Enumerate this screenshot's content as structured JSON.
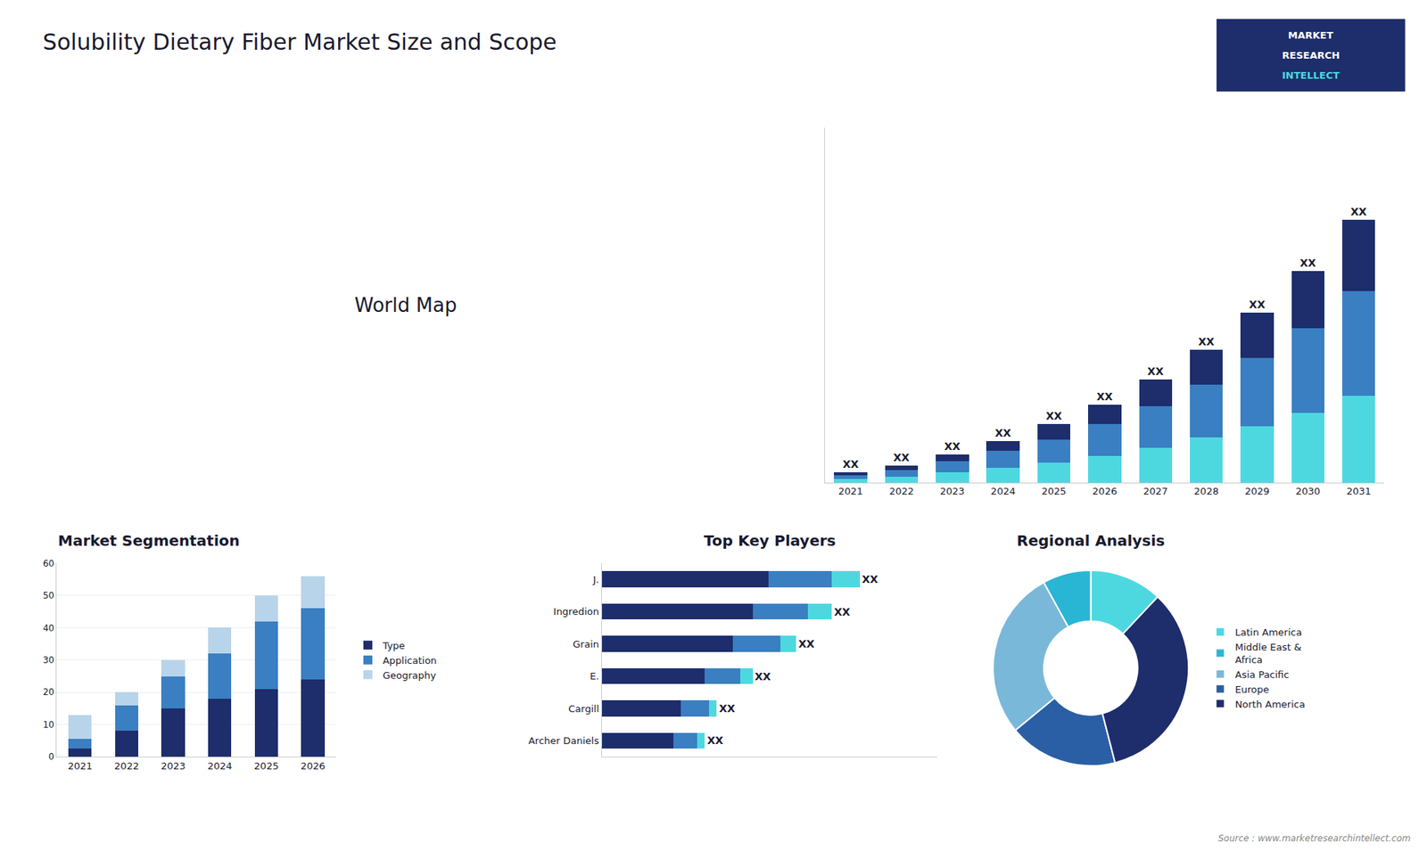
{
  "title": "Solubility Dietary Fiber Market Size and Scope",
  "annotations": [
    "World Map",
    "Source : www.marketresearchintellect.com",
    "MARKET",
    "RESEARCH",
    "INTELLECT"
  ],
  "chart_data": [
    {
      "type": "bar",
      "stacked": true,
      "categories": [
        "2021",
        "2022",
        "2023",
        "2024",
        "2025",
        "2026",
        "2027",
        "2028",
        "2029",
        "2030",
        "2031"
      ],
      "series": [
        {
          "color": "#4dd8e0",
          "values": [
            1.0,
            1.8,
            3.0,
            4.5,
            6.0,
            8.0,
            10.5,
            13.5,
            17.0,
            21.0,
            26.0
          ]
        },
        {
          "color": "#3a7fc1",
          "values": [
            1.2,
            2.0,
            3.5,
            5.0,
            7.0,
            9.5,
            12.5,
            16.0,
            20.5,
            25.5,
            31.5
          ]
        },
        {
          "color": "#1e2d6b",
          "values": [
            0.8,
            1.2,
            2.0,
            3.0,
            4.5,
            6.0,
            8.0,
            10.5,
            13.5,
            17.0,
            21.5
          ],
          "value_labels": [
            "XX",
            "XX",
            "XX",
            "XX",
            "XX",
            "XX",
            "XX",
            "XX",
            "XX",
            "XX",
            "XX"
          ]
        }
      ],
      "ylim": [
        0,
        106.65
      ],
      "tick_labels": "x",
      "grid": false
    },
    {
      "type": "bar",
      "title": "Market Segmentation",
      "stacked": true,
      "categories": [
        "2021",
        "2022",
        "2023",
        "2024",
        "2025",
        "2026"
      ],
      "series": [
        {
          "name": "Type",
          "color": "#1e2d6b",
          "values": [
            2.5,
            8.0,
            15.0,
            18.0,
            21.0,
            24.0
          ]
        },
        {
          "name": "Application",
          "color": "#3a7fc1",
          "values": [
            3.0,
            8.0,
            10.0,
            14.0,
            21.0,
            22.0
          ]
        },
        {
          "name": "Geography",
          "color": "#b8d4ea",
          "values": [
            7.5,
            4.0,
            5.0,
            8.0,
            8.0,
            10.0
          ]
        }
      ],
      "ylim": [
        0,
        60
      ],
      "yticks": [
        0,
        10,
        20,
        30,
        40,
        50,
        60
      ],
      "grid": true,
      "legend": "right"
    },
    {
      "type": "bar",
      "title": "Top Key Players",
      "orientation": "horizontal",
      "stacked": true,
      "categories": [
        "J.",
        "Ingredion",
        "Grain",
        "E.",
        "Cargill",
        "Archer Daniels"
      ],
      "series": [
        {
          "color": "#1e2d6b",
          "values": [
            42,
            38,
            33,
            26,
            20,
            18
          ]
        },
        {
          "color": "#3a7fc1",
          "values": [
            16,
            14,
            12,
            9,
            7,
            6
          ]
        },
        {
          "color": "#4dd8e0",
          "values": [
            7,
            6,
            4,
            3,
            2,
            2
          ],
          "value_labels": [
            "XX",
            "XX",
            "XX",
            "XX",
            "XX",
            "XX"
          ]
        }
      ],
      "xlim": [
        0,
        84.5
      ],
      "tick_labels": "y",
      "grid": false
    },
    {
      "type": "pie",
      "title": "Regional Analysis",
      "categories": [
        "Latin America",
        "Middle East &\nAfrica",
        "Asia Pacific",
        "Europe",
        "North America"
      ],
      "values": [
        12,
        8,
        28,
        18,
        34
      ],
      "colors": [
        "#4dd8e0",
        "#29b6d4",
        "#7ab8d9",
        "#2a5fa5",
        "#1e2d6b"
      ],
      "legend": "right"
    }
  ]
}
